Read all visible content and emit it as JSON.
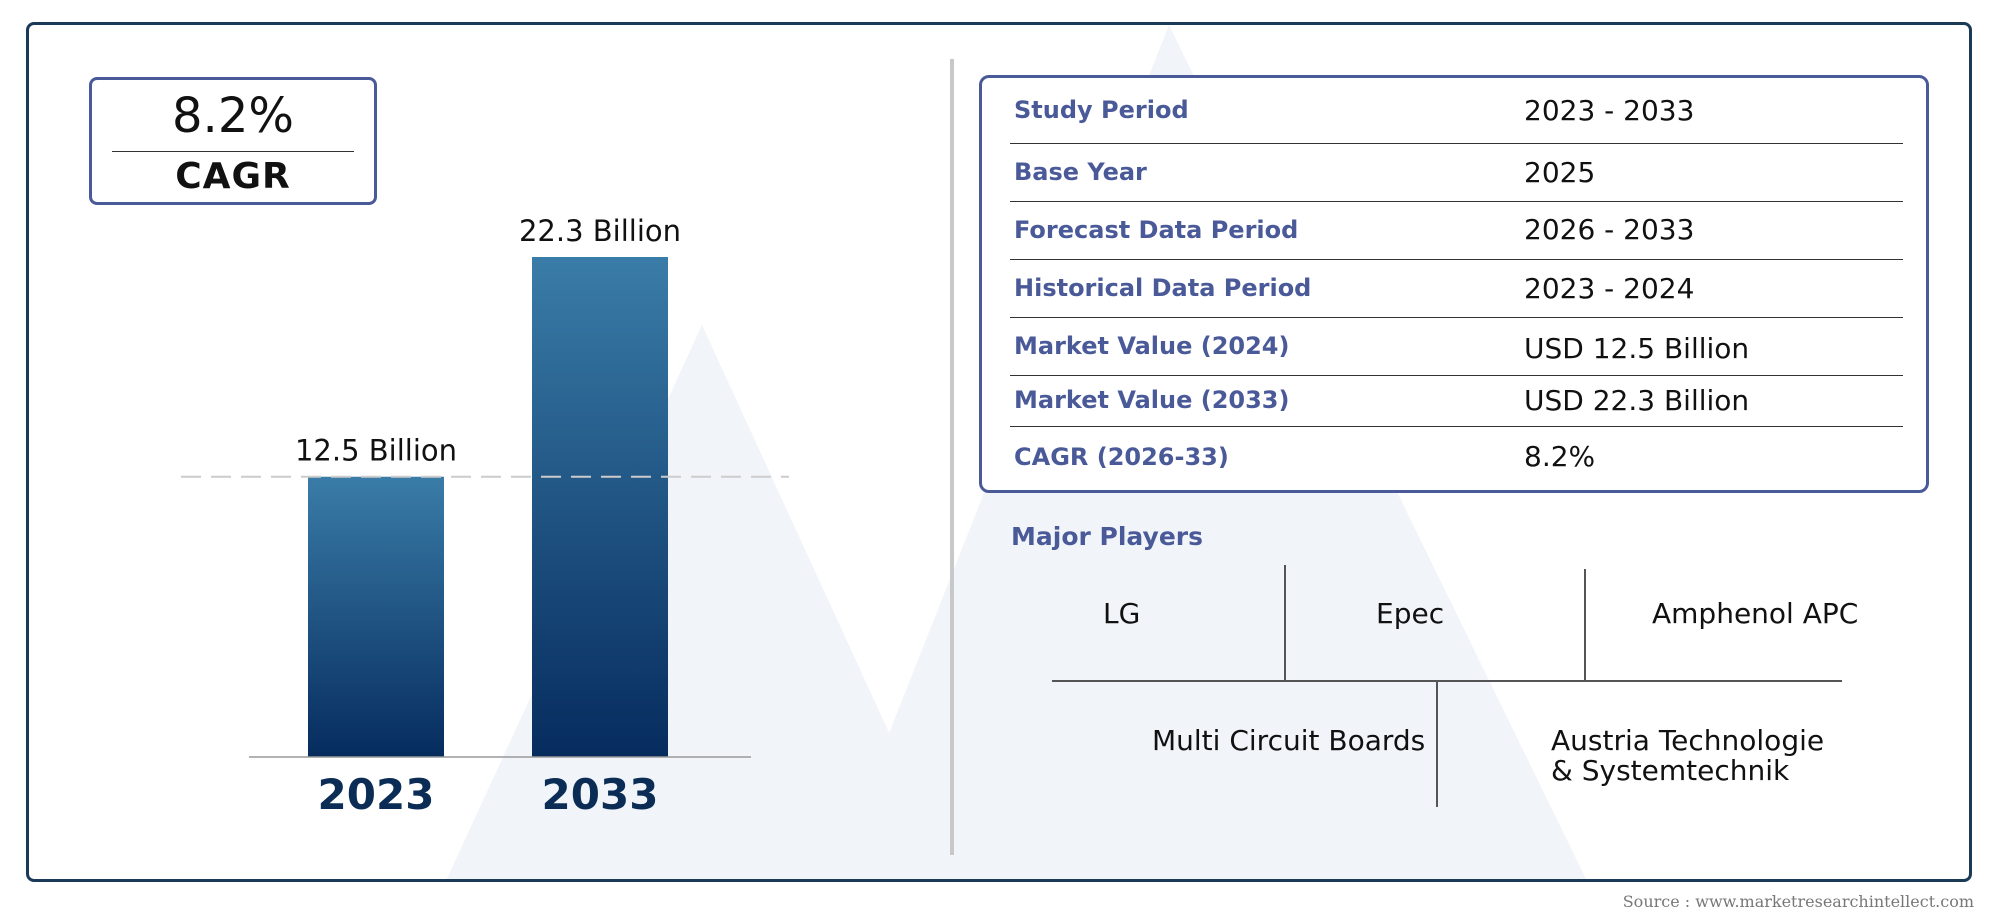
{
  "cagr": {
    "value": "8.2%",
    "label": "CAGR"
  },
  "chart_data": {
    "type": "bar",
    "categories": [
      "2023",
      "2033"
    ],
    "values": [
      12.5,
      22.3
    ],
    "data_labels": [
      "12.5 Billion",
      "22.3 Billion"
    ],
    "reference_line": 12.5,
    "colors": {
      "bar_top": "#3a7ca8",
      "bar_bottom": "#062c5e",
      "category_label": "#0b2d55"
    }
  },
  "info_table": [
    {
      "label": "Study Period",
      "value": "2023 - 2033"
    },
    {
      "label": "Base Year",
      "value": "2025"
    },
    {
      "label": "Forecast Data Period",
      "value": "2026 - 2033"
    },
    {
      "label": "Historical Data Period",
      "value": "2023 - 2024"
    },
    {
      "label": "Market Value (2024)",
      "value": "USD 12.5 Billion"
    },
    {
      "label": "Market Value (2033)",
      "value": "USD 22.3 Billion"
    },
    {
      "label": "CAGR (2026-33)",
      "value": "8.2%"
    }
  ],
  "players": {
    "title": "Major Players",
    "items": [
      "LG",
      "Epec",
      "Amphenol APC",
      "Multi Circuit Boards",
      "Austria Technologie & Systemtechnik"
    ]
  },
  "source": "Source : www.marketresearchintellect.com",
  "colors": {
    "accent": "#4a5a99",
    "frame": "#1b3a57"
  }
}
